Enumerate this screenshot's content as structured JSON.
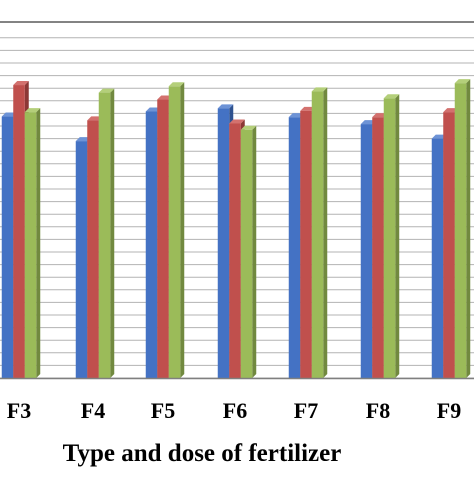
{
  "chart_data": {
    "type": "bar",
    "title": "",
    "xlabel": "Type and dose of fertilizer",
    "ylabel": "",
    "categories": [
      "F3",
      "F4",
      "F5",
      "F6",
      "F7",
      "F8",
      "F9"
    ],
    "series": [
      {
        "values": [
          41.5,
          37.6,
          42.3,
          42.8,
          41.4,
          40.3,
          38.0
        ]
      },
      {
        "values": [
          46.5,
          40.9,
          44.2,
          40.4,
          42.4,
          41.4,
          42.2
        ]
      },
      {
        "values": [
          42.2,
          45.3,
          46.3,
          39.4,
          45.5,
          44.4,
          46.8
        ]
      }
    ],
    "ylim": [
      0,
      60
    ],
    "grid": true,
    "colors": {
      "series": [
        "#4472c4",
        "#c0504d",
        "#9bbb59"
      ],
      "series_dark": [
        "#2f528f",
        "#8c3836",
        "#71893f"
      ],
      "series_light": [
        "#6d93d6",
        "#d3716e",
        "#b4cf7a"
      ],
      "gridline": "#b3b3b3",
      "axis": "#7f7f7f"
    }
  }
}
